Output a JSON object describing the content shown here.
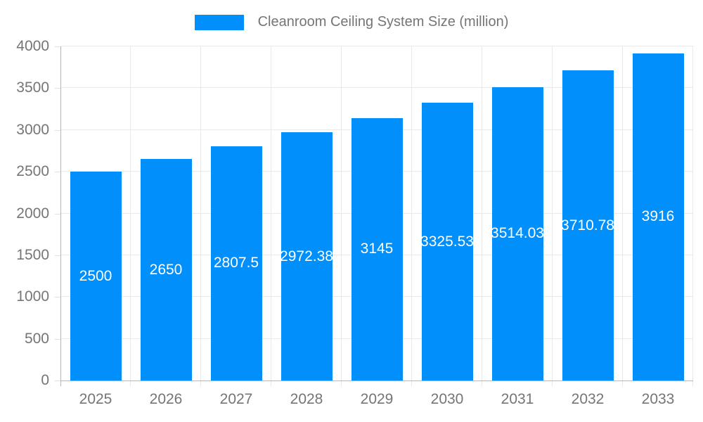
{
  "legend": {
    "label": "Cleanroom Ceiling System Size (million)"
  },
  "colors": {
    "bar": "#008FFB",
    "grid": "#e9e9e9",
    "axis_line": "#b6b6b6",
    "tick": "#e0e0e0",
    "axis_label_text": "#757575",
    "data_label_text": "#ffffff",
    "background": "#ffffff"
  },
  "chart_data": {
    "type": "bar",
    "title": "Cleanroom Ceiling System Size (million)",
    "categories": [
      "2025",
      "2026",
      "2027",
      "2028",
      "2029",
      "2030",
      "2031",
      "2032",
      "2033"
    ],
    "values": [
      2500,
      2650,
      2807.5,
      2972.38,
      3145,
      3325.53,
      3514.03,
      3710.78,
      3916
    ],
    "bar_labels": [
      "2500",
      "2650",
      "2807.5",
      "2972.38",
      "3145",
      "3325.53",
      "3514.03",
      "3710.78",
      "3916"
    ],
    "xlabel": "",
    "ylabel": "",
    "ylim": [
      0,
      4000
    ],
    "yticks": [
      0,
      500,
      1000,
      1500,
      2000,
      2500,
      3000,
      3500,
      4000
    ],
    "grid": true,
    "legend_position": "top"
  }
}
